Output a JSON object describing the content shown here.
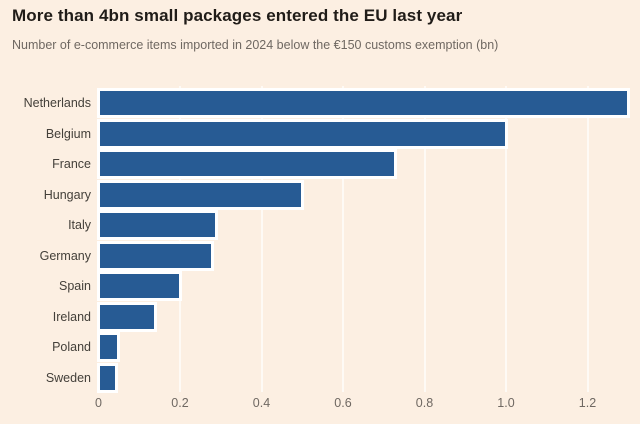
{
  "header": {
    "title": "More than 4bn small packages entered the EU last year",
    "subtitle": "Number of e-commerce items imported in 2024 below the €150 customs exemption (bn)"
  },
  "chart_data": {
    "type": "bar",
    "orientation": "horizontal",
    "title": "More than 4bn small packages entered the EU last year",
    "subtitle": "Number of e-commerce items imported in 2024 below the €150 customs exemption (bn)",
    "categories": [
      "Netherlands",
      "Belgium",
      "France",
      "Hungary",
      "Italy",
      "Germany",
      "Spain",
      "Ireland",
      "Poland",
      "Sweden"
    ],
    "values": [
      1.3,
      1.0,
      0.73,
      0.5,
      0.29,
      0.28,
      0.2,
      0.14,
      0.05,
      0.045
    ],
    "unit": "bn",
    "xlabel": "",
    "ylabel": "",
    "x_tick_values": [
      0,
      0.2,
      0.4,
      0.6,
      0.8,
      1.0,
      1.2
    ],
    "x_tick_labels": [
      "0",
      "0.2",
      "0.4",
      "0.6",
      "0.8",
      "1.0",
      "1.2"
    ],
    "xlim": [
      0,
      1.33
    ],
    "grid": "vertical-faint",
    "legend": "none",
    "colors": {
      "bar": "#275b94",
      "bar_outline": "#ffffff",
      "background": "#fcefe2",
      "title_text": "#201c18",
      "subtitle_text": "#6f6862",
      "label_text": "#44403a",
      "tick_text": "#6f6862"
    }
  }
}
